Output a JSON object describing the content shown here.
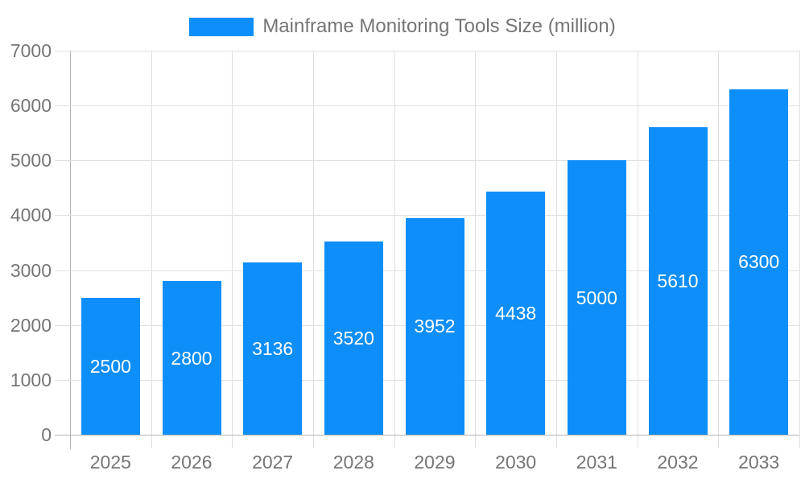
{
  "chart_data": {
    "type": "bar",
    "title": "Mainframe Monitoring Tools Size (million)",
    "categories": [
      "2025",
      "2026",
      "2027",
      "2028",
      "2029",
      "2030",
      "2031",
      "2032",
      "2033"
    ],
    "values": [
      2500,
      2800,
      3136,
      3520,
      3952,
      4438,
      5000,
      5610,
      6300
    ],
    "ylim": [
      0,
      7000
    ],
    "yticks": [
      0,
      1000,
      2000,
      3000,
      4000,
      5000,
      6000,
      7000
    ],
    "legend_position": "top",
    "grid": true,
    "colors": {
      "bar": "#0d8ef8",
      "bar_label": "#ffffff",
      "grid": "#e0e0e0",
      "axis": "#b3b3b3",
      "text": "#757575",
      "background": "#ffffff"
    }
  }
}
